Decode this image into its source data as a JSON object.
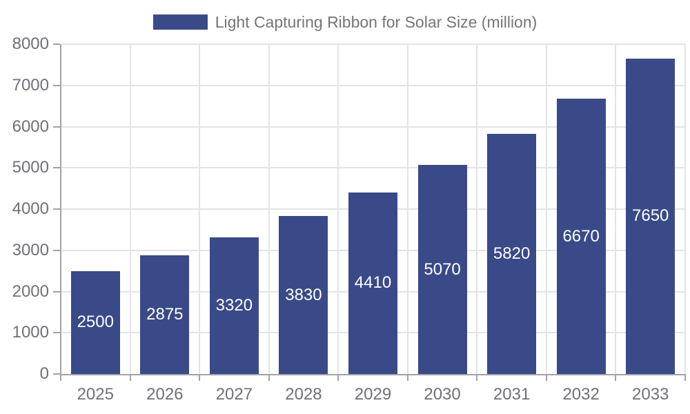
{
  "chart_data": {
    "type": "bar",
    "title": "Light Capturing Ribbon for Solar Size (million)",
    "categories": [
      "2025",
      "2026",
      "2027",
      "2028",
      "2029",
      "2030",
      "2031",
      "2032",
      "2033"
    ],
    "series": [
      {
        "name": "Light Capturing Ribbon for Solar Size (million)",
        "values": [
          2500,
          2875,
          3320,
          3830,
          4410,
          5070,
          5820,
          6670,
          7650
        ]
      }
    ],
    "xlabel": "",
    "ylabel": "",
    "ylim": [
      0,
      8000
    ],
    "ytick_step": 1000,
    "ytick_labels": [
      "0",
      "1000",
      "2000",
      "3000",
      "4000",
      "5000",
      "6000",
      "7000",
      "8000"
    ],
    "grid": true,
    "bar_value_labels_visible": true,
    "legend_position": "top-center",
    "colors": {
      "bar": "#3A4A88",
      "bar_label": "#FFFFFF",
      "grid_line": "#E3E3E8",
      "axis_line": "#A2A2A7",
      "tick_label": "#6E7079",
      "legend_text": "#75757A",
      "background": "#FFFFFF"
    }
  }
}
